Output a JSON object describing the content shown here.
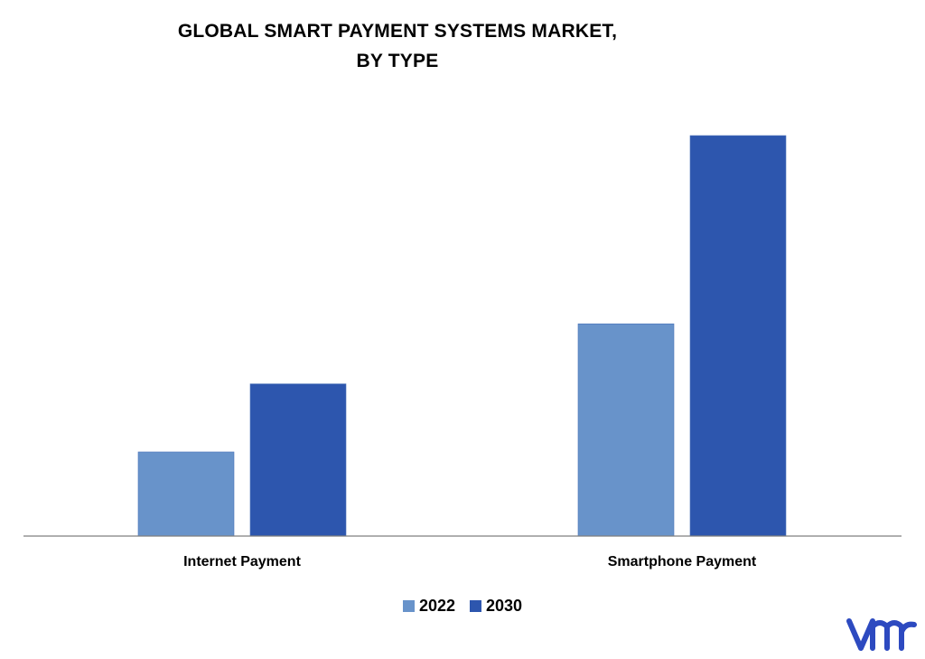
{
  "chart_data": {
    "type": "bar",
    "title_lines": [
      "GLOBAL SMART PAYMENT SYSTEMS MARKET,",
      "BY TYPE"
    ],
    "categories": [
      "Internet Payment",
      "Smartphone Payment"
    ],
    "series": [
      {
        "name": "2022",
        "values": [
          21,
          53
        ],
        "color": "#6893CA"
      },
      {
        "name": "2030",
        "values": [
          38,
          100
        ],
        "color": "#2D56AE"
      }
    ],
    "ylim": [
      0,
      100
    ],
    "xlabel": "",
    "ylabel": "",
    "grid": false,
    "legend_position": "bottom-center"
  },
  "branding": {
    "logo_icon": "vmr-logo-icon",
    "logo_color": "#2D4AC0"
  }
}
